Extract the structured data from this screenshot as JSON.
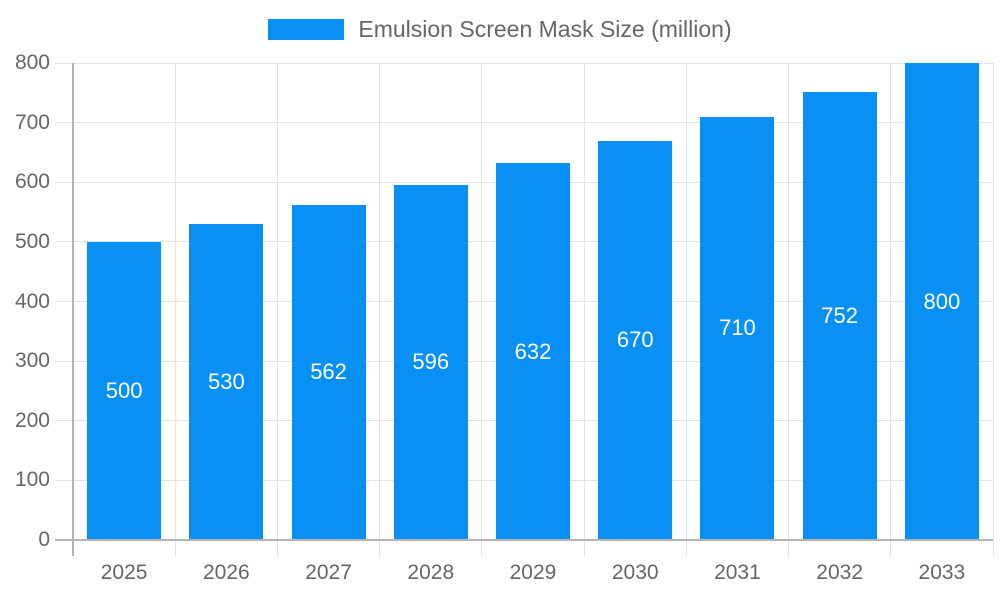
{
  "legend": {
    "label": "Emulsion Screen Mask Size (million)"
  },
  "chart_data": {
    "type": "bar",
    "title": "Emulsion Screen Mask Size (million)",
    "categories": [
      "2025",
      "2026",
      "2027",
      "2028",
      "2029",
      "2030",
      "2031",
      "2032",
      "2033"
    ],
    "values": [
      500,
      530,
      562,
      596,
      632,
      670,
      710,
      752,
      800
    ],
    "xlabel": "",
    "ylabel": "",
    "ylim": [
      0,
      800
    ],
    "ytick_step": 100,
    "ytick_labels": [
      "0",
      "100",
      "200",
      "300",
      "400",
      "500",
      "600",
      "700",
      "800"
    ],
    "grid": true,
    "legend_position": "top-center",
    "bar_color": "#0890f5",
    "value_label_color": "#ffffff",
    "axis_color": "#b3b3b3",
    "grid_color": "#e3e3e3",
    "tick_text_color": "#666666"
  }
}
